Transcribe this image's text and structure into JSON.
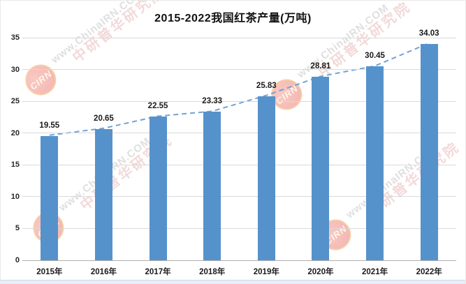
{
  "title": "2015-2022我国红茶产量(万吨)",
  "watermark": {
    "badge_text": "CIRN",
    "url_text": "www.ChinaIRN.COM",
    "cn_text": "中研普华研究院"
  },
  "chart_data": {
    "type": "bar",
    "title": "2015-2022我国红茶产量(万吨)",
    "categories": [
      "2015年",
      "2016年",
      "2017年",
      "2018年",
      "2019年",
      "2020年",
      "2021年",
      "2022年"
    ],
    "values": [
      19.55,
      20.65,
      22.55,
      23.33,
      25.83,
      28.81,
      30.45,
      34.03
    ],
    "xlabel": "",
    "ylabel": "",
    "ylim": [
      0,
      35
    ],
    "yticks": [
      0,
      5,
      10,
      15,
      20,
      25,
      30,
      35
    ],
    "grid": true,
    "legend": "none",
    "value_labels": true,
    "bar_color": "#5592CC",
    "trend_line": {
      "style": "dashed",
      "color": "#6FA3D8"
    },
    "grid_color": "#d9d9d9",
    "label_color": "#1a1a1a"
  }
}
